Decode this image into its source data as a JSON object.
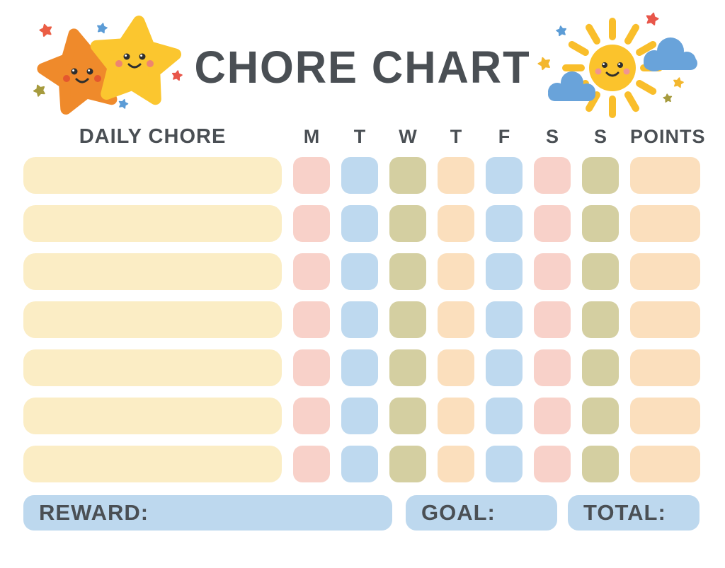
{
  "title": "CHORE CHART",
  "header": {
    "chore_column": "DAILY CHORE",
    "day_columns": [
      "M",
      "T",
      "W",
      "T",
      "F",
      "S",
      "S"
    ],
    "points_column": "POINTS"
  },
  "rows": [
    {
      "chore": "",
      "cells": [
        "pink",
        "blue",
        "olive",
        "peach",
        "blue",
        "pink",
        "olive"
      ],
      "points_color": "peach",
      "points": ""
    },
    {
      "chore": "",
      "cells": [
        "pink",
        "blue",
        "olive",
        "peach",
        "blue",
        "pink",
        "olive"
      ],
      "points_color": "peach",
      "points": ""
    },
    {
      "chore": "",
      "cells": [
        "pink",
        "blue",
        "olive",
        "peach",
        "blue",
        "pink",
        "olive"
      ],
      "points_color": "peach",
      "points": ""
    },
    {
      "chore": "",
      "cells": [
        "pink",
        "blue",
        "olive",
        "peach",
        "blue",
        "pink",
        "olive"
      ],
      "points_color": "peach",
      "points": ""
    },
    {
      "chore": "",
      "cells": [
        "pink",
        "blue",
        "olive",
        "peach",
        "blue",
        "pink",
        "olive"
      ],
      "points_color": "peach",
      "points": ""
    },
    {
      "chore": "",
      "cells": [
        "pink",
        "blue",
        "olive",
        "peach",
        "blue",
        "pink",
        "olive"
      ],
      "points_color": "peach",
      "points": ""
    },
    {
      "chore": "",
      "cells": [
        "pink",
        "blue",
        "olive",
        "peach",
        "blue",
        "pink",
        "olive"
      ],
      "points_color": "peach",
      "points": ""
    }
  ],
  "footer": {
    "reward_label": "REWARD:",
    "reward_value": "",
    "goal_label": "GOAL:",
    "goal_value": "",
    "total_label": "TOTAL:",
    "total_value": ""
  },
  "colors": {
    "pink": "#F8D1C9",
    "blue": "#BED9EF",
    "olive": "#D4CFA1",
    "peach": "#FBDFBD",
    "cream": "#FBEDC5",
    "footer_blue": "#BDD8EE",
    "text": "#4A4F54",
    "star_orange": "#EF8A2B",
    "star_yellow": "#FBC62F",
    "sun_yellow": "#FBC32C",
    "ray_yellow": "#F9BE2B",
    "cloud_blue": "#69A3DA",
    "mini_red": "#E8564A",
    "mini_blue": "#5C9CD6",
    "mini_olive": "#A69B3E",
    "mini_yellow": "#F3B72E",
    "face_dark": "#2E2E2E",
    "cheek_orange": "#E4572E",
    "cheek_salmon": "#EE8570",
    "cheek_pink": "#F19590"
  },
  "icons": [
    "orange-star-icon",
    "yellow-star-icon",
    "mini-star-icon",
    "sun-icon",
    "cloud-icon"
  ]
}
